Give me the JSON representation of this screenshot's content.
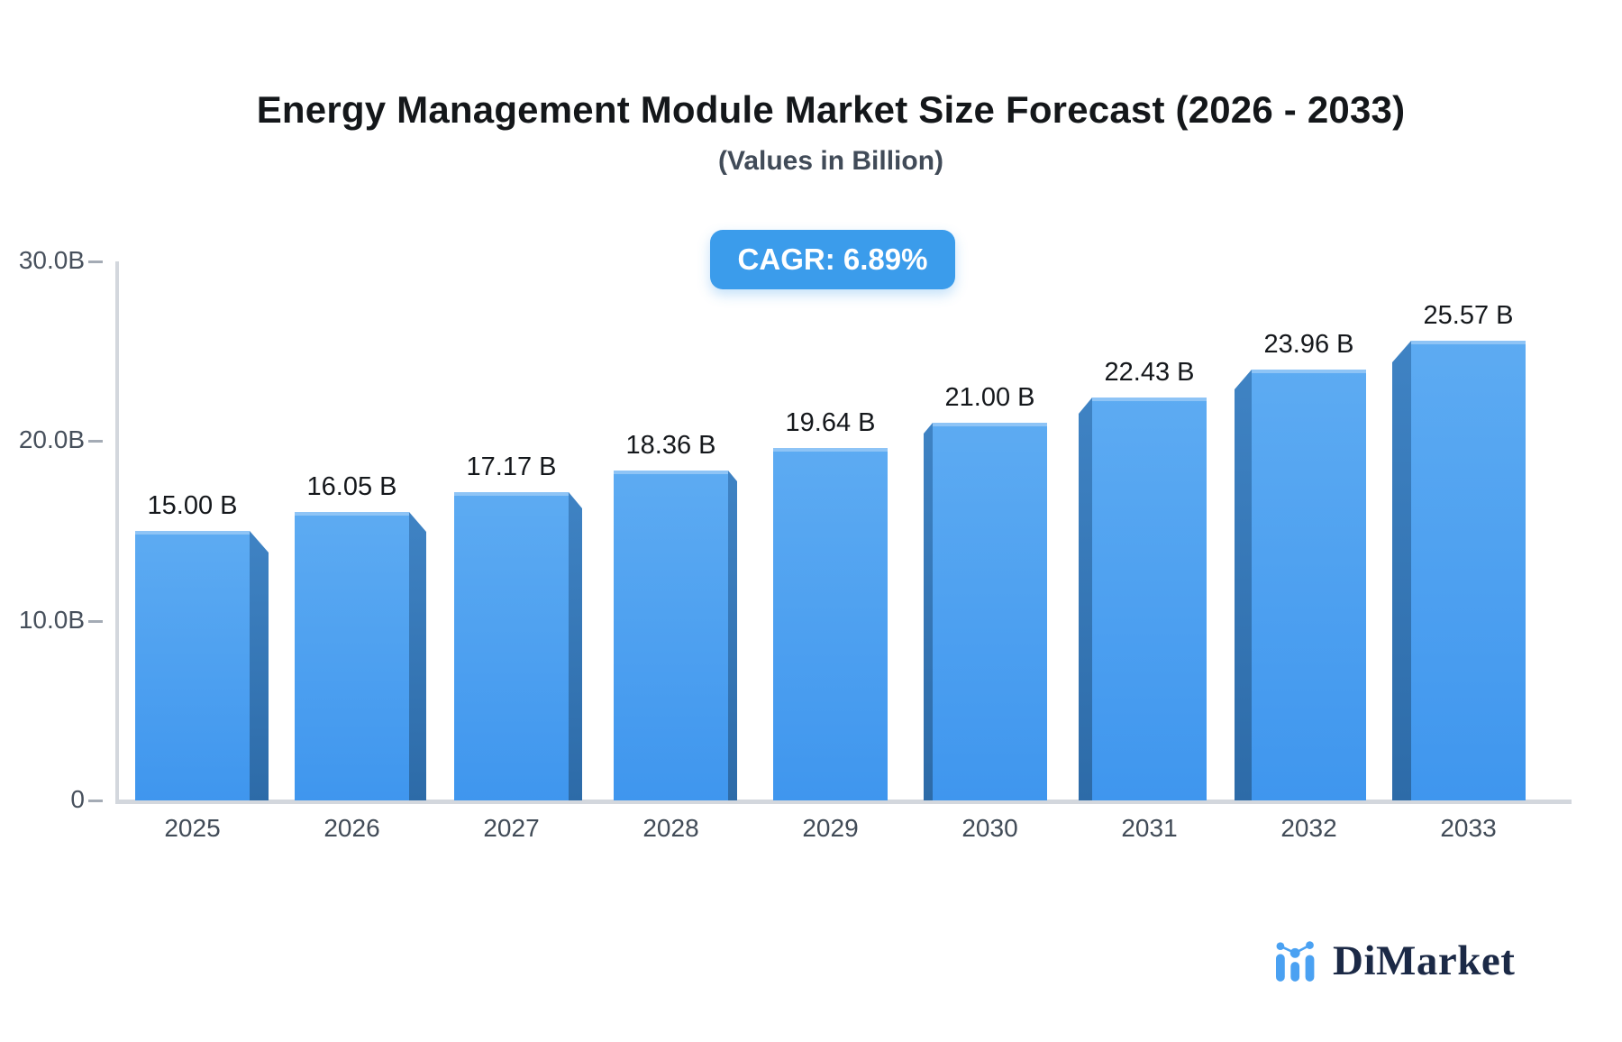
{
  "header": {
    "title": "Energy Management Module Market Size Forecast (2026 - 2033)",
    "subtitle": "(Values in Billion)"
  },
  "badge": {
    "label": "CAGR: 6.89%",
    "background": "#3b9ceb",
    "text_color": "#ffffff"
  },
  "chart_data": {
    "type": "bar",
    "title": "Energy Management Module Market Size Forecast (2026 - 2033)",
    "subtitle": "(Values in Billion)",
    "categories": [
      "2025",
      "2026",
      "2027",
      "2028",
      "2029",
      "2030",
      "2031",
      "2032",
      "2033"
    ],
    "values": [
      15.0,
      16.05,
      17.17,
      18.36,
      19.64,
      21.0,
      22.43,
      23.96,
      25.57
    ],
    "value_labels": [
      "15.00 B",
      "16.05 B",
      "17.17 B",
      "18.36 B",
      "19.64 B",
      "21.00 B",
      "22.43 B",
      "23.96 B",
      "25.57 B"
    ],
    "ylim": [
      0,
      30
    ],
    "yticks": [
      {
        "value": 0,
        "label": "0"
      },
      {
        "value": 10,
        "label": "10.0B"
      },
      {
        "value": 20,
        "label": "20.0B"
      },
      {
        "value": 30,
        "label": "30.0B"
      }
    ],
    "grid": false,
    "legend": "none",
    "colors": {
      "bar_face_top": "#5dabf2",
      "bar_face_bottom": "#3f96ee",
      "bar_side_top": "#3f83c4",
      "bar_side_bottom": "#2d6ba8",
      "axis_line": "#d3d7dd"
    }
  },
  "logo": {
    "text": "DiMarket",
    "icon": "bar-chart-trend-icon",
    "icon_color": "#4aa1f2",
    "text_color": "#1b2946"
  }
}
